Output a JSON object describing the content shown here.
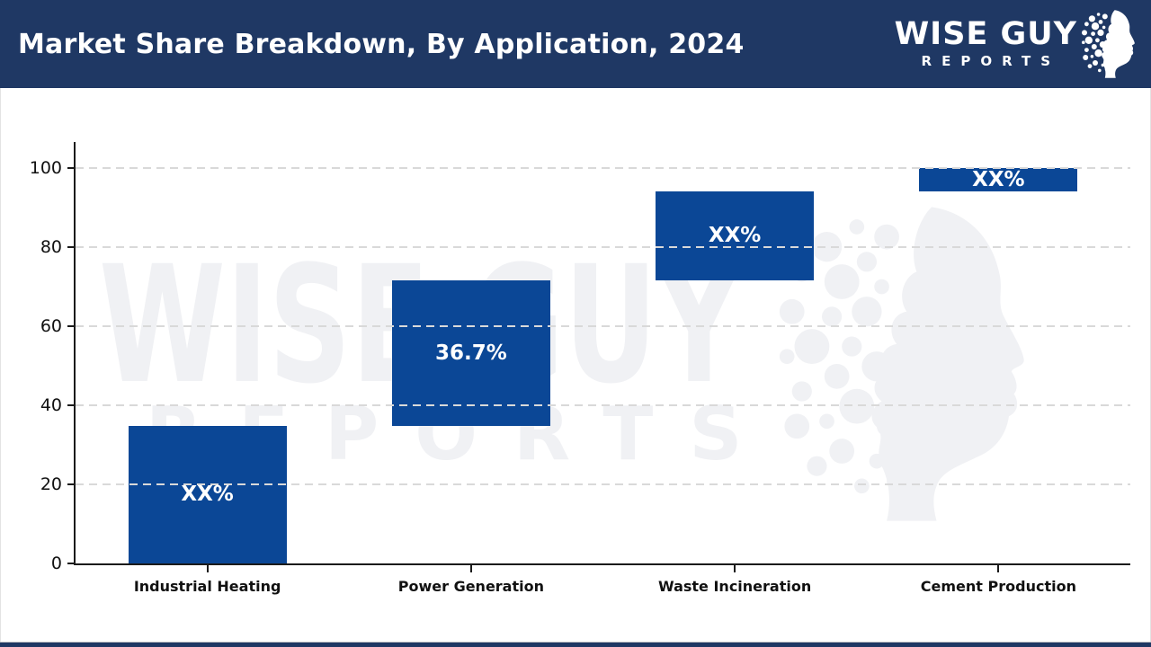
{
  "header": {
    "title": "Market Share Breakdown, By Application, 2024",
    "logo": {
      "line1": "WISE GUY",
      "line2": "REPORTS"
    }
  },
  "watermark": {
    "line1": "WISE GUY",
    "line2": "REPORTS"
  },
  "colors": {
    "header_bg": "#1F3864",
    "bar": "#0B4796",
    "bar_label": "#FFFFFF",
    "grid": "#D9D9D9",
    "axis": "#1A1A1A",
    "watermark": "#F0F1F4",
    "title_text": "#FFFFFF"
  },
  "chart_data": {
    "type": "bar",
    "variant": "floating-waterfall",
    "title": "Market Share Breakdown, By Application, 2024",
    "categories": [
      "Industrial Heating",
      "Power Generation",
      "Waste Incineration",
      "Cement Production"
    ],
    "segments": [
      {
        "category": "Industrial Heating",
        "start": 0,
        "end": 34.8,
        "value": 34.8,
        "label": "XX%"
      },
      {
        "category": "Power Generation",
        "start": 34.8,
        "end": 71.5,
        "value": 36.7,
        "label": "36.7%"
      },
      {
        "category": "Waste Incineration",
        "start": 71.5,
        "end": 94.2,
        "value": 22.7,
        "label": "XX%"
      },
      {
        "category": "Cement Production",
        "start": 94.2,
        "end": 100,
        "value": 5.8,
        "label": "XX%"
      }
    ],
    "yticks": [
      0,
      20,
      40,
      60,
      80,
      100
    ],
    "ylim": [
      0,
      106
    ],
    "xlabel": "",
    "ylabel": "",
    "grid": "horizontal-dashed",
    "legend": "none"
  }
}
